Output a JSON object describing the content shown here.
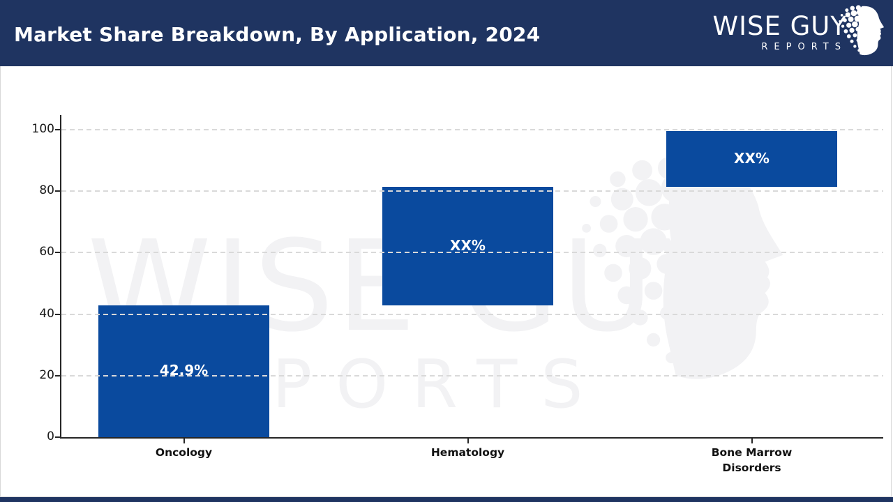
{
  "header": {
    "title": "Market Share Breakdown, By Application, 2024",
    "brand_line1": "WISE GUY",
    "brand_line2": "REPORTS"
  },
  "watermark": {
    "line1": "WISE GUY",
    "line2": "REPORTS"
  },
  "colors": {
    "header_navy": "#1F3461",
    "bar_blue": "#0A4A9E",
    "gridline_gray": "#D9D9D9",
    "axis_black": "#262626",
    "watermark_gray": "#F2F2F4",
    "card_border_gray": "#D8D8D8",
    "background_white": "#FFFFFF"
  },
  "chart_data": {
    "type": "bar",
    "subtype": "stacked-waterfall",
    "title": "Market Share Breakdown, By Application, 2024",
    "categories": [
      "Oncology",
      "Hematology",
      "Bone Marrow Disorders"
    ],
    "segments": [
      {
        "category": "Oncology",
        "start": 0,
        "end": 42.9,
        "label": "42.9%"
      },
      {
        "category": "Hematology",
        "start": 42.9,
        "end": 81.4,
        "label": "XX%"
      },
      {
        "category": "Bone Marrow Disorders",
        "start": 81.4,
        "end": 99.6,
        "label": "XX%"
      }
    ],
    "xlabel": "",
    "ylabel": "",
    "ylim": [
      0,
      104.8
    ],
    "yticks": [
      0,
      20,
      40,
      60,
      80,
      100
    ],
    "grid": true,
    "grid_style": "dashed",
    "legend": "none",
    "bar_color": "#0A4A9E",
    "label_color": "#FFFFFF"
  }
}
